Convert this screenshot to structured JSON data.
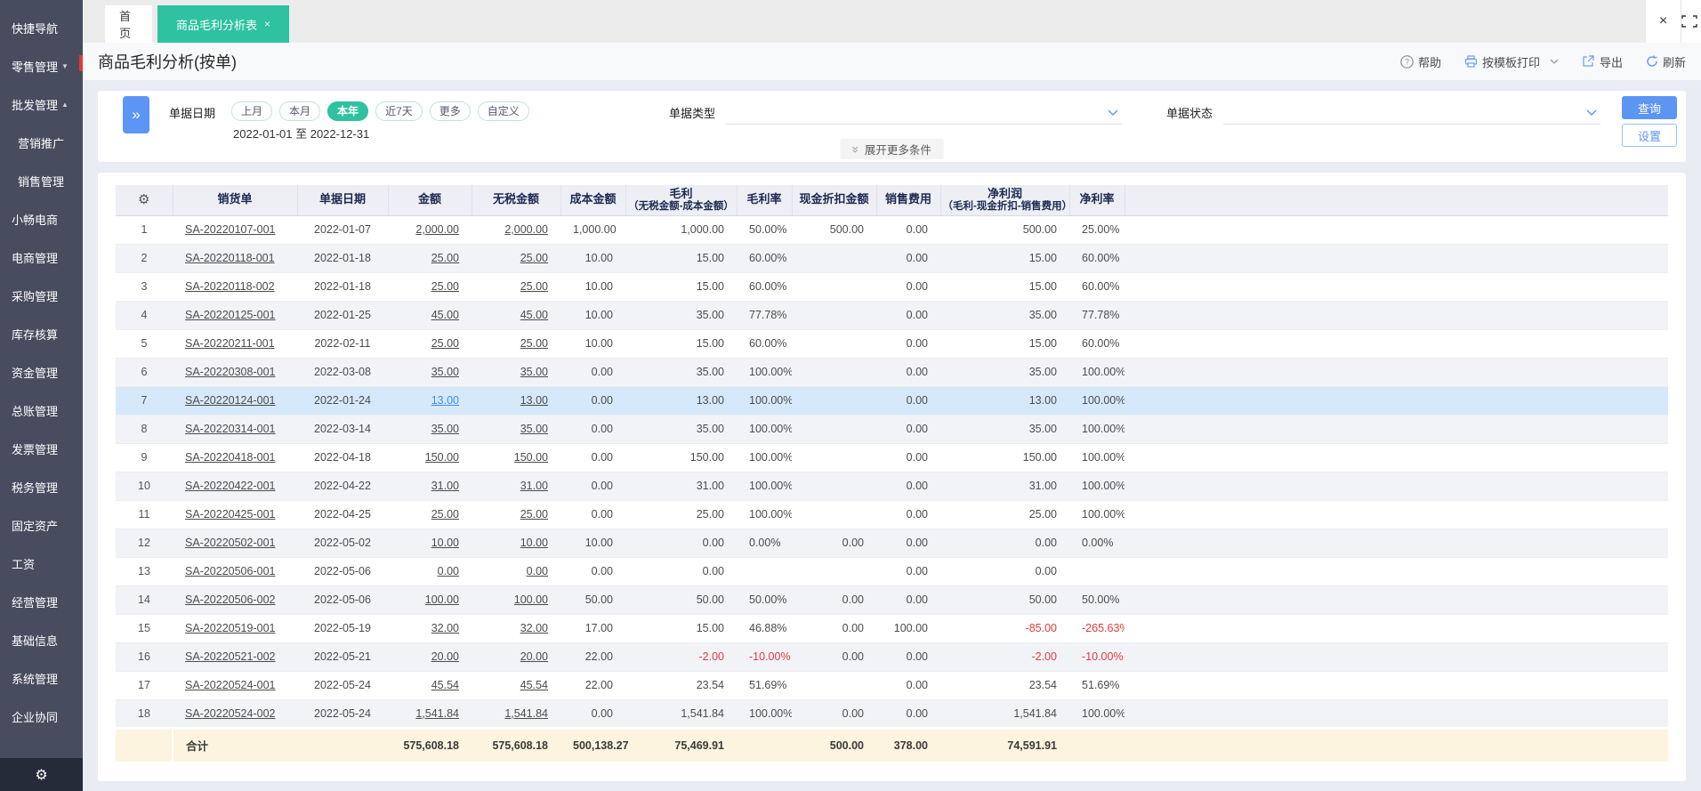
{
  "window": {
    "close_icon": "×"
  },
  "sidebar": {
    "items": [
      {
        "label": "快捷导航"
      },
      {
        "label": "零售管理",
        "arrow": "down"
      },
      {
        "label": "批发管理",
        "arrow": "up"
      },
      {
        "label": "营销推广",
        "sub": true
      },
      {
        "label": "销售管理",
        "sub": true
      },
      {
        "label": "小畅电商"
      },
      {
        "label": "电商管理"
      },
      {
        "label": "采购管理"
      },
      {
        "label": "库存核算"
      },
      {
        "label": "资金管理"
      },
      {
        "label": "总账管理"
      },
      {
        "label": "发票管理"
      },
      {
        "label": "税务管理"
      },
      {
        "label": "固定资产"
      },
      {
        "label": "工资"
      },
      {
        "label": "经营管理"
      },
      {
        "label": "基础信息"
      },
      {
        "label": "系统管理"
      },
      {
        "label": "企业协同"
      }
    ]
  },
  "tabs": [
    {
      "label": "首页",
      "active": false
    },
    {
      "label": "商品毛利分析表",
      "active": true,
      "close": "×"
    }
  ],
  "page": {
    "title": "商品毛利分析(按单)"
  },
  "toolbar": {
    "help": "帮助",
    "print": "按模板打印",
    "export": "导出",
    "refresh": "刷新"
  },
  "filters": {
    "date_label": "单据日期",
    "date_pills": [
      "上月",
      "本月",
      "本年",
      "近7天",
      "更多",
      "自定义"
    ],
    "active_pill": "本年",
    "date_range": "2022-01-01 至 2022-12-31",
    "type_label": "单据类型",
    "status_label": "单据状态",
    "query_button": "查询",
    "settings_button": "设置",
    "expand_more": "展开更多条件"
  },
  "table": {
    "headers": [
      {
        "t": "销货单"
      },
      {
        "t": "单据日期"
      },
      {
        "t": "金额"
      },
      {
        "t": "无税金额"
      },
      {
        "t": "成本金额"
      },
      {
        "t": "毛利",
        "s": "（无税金额-成本金额）"
      },
      {
        "t": "毛利率"
      },
      {
        "t": "现金折扣金额"
      },
      {
        "t": "销售费用"
      },
      {
        "t": "净利润",
        "s": "（毛利-现金折扣-销售费用）"
      },
      {
        "t": "净利率"
      }
    ],
    "rows": [
      {
        "n": "1",
        "order": "SA-20220107-001",
        "date": "2022-01-07",
        "amount": "2,000.00",
        "tax": "2,000.00",
        "cost": "1,000.00",
        "profit": "1,000.00",
        "margin": "50.00%",
        "disc": "500.00",
        "exp": "0.00",
        "net": "500.00",
        "nrate": "25.00%"
      },
      {
        "n": "2",
        "order": "SA-20220118-001",
        "date": "2022-01-18",
        "amount": "25.00",
        "tax": "25.00",
        "cost": "10.00",
        "profit": "15.00",
        "margin": "60.00%",
        "disc": "",
        "exp": "0.00",
        "net": "15.00",
        "nrate": "60.00%"
      },
      {
        "n": "3",
        "order": "SA-20220118-002",
        "date": "2022-01-18",
        "amount": "25.00",
        "tax": "25.00",
        "cost": "10.00",
        "profit": "15.00",
        "margin": "60.00%",
        "disc": "",
        "exp": "0.00",
        "net": "15.00",
        "nrate": "60.00%"
      },
      {
        "n": "4",
        "order": "SA-20220125-001",
        "date": "2022-01-25",
        "amount": "45.00",
        "tax": "45.00",
        "cost": "10.00",
        "profit": "35.00",
        "margin": "77.78%",
        "disc": "",
        "exp": "0.00",
        "net": "35.00",
        "nrate": "77.78%"
      },
      {
        "n": "5",
        "order": "SA-20220211-001",
        "date": "2022-02-11",
        "amount": "25.00",
        "tax": "25.00",
        "cost": "10.00",
        "profit": "15.00",
        "margin": "60.00%",
        "disc": "",
        "exp": "0.00",
        "net": "15.00",
        "nrate": "60.00%"
      },
      {
        "n": "6",
        "order": "SA-20220308-001",
        "date": "2022-03-08",
        "amount": "35.00",
        "tax": "35.00",
        "cost": "0.00",
        "profit": "35.00",
        "margin": "100.00%",
        "disc": "",
        "exp": "0.00",
        "net": "35.00",
        "nrate": "100.00%"
      },
      {
        "n": "7",
        "order": "SA-20220124-001",
        "date": "2022-01-24",
        "amount": "13.00",
        "tax": "13.00",
        "cost": "0.00",
        "profit": "13.00",
        "margin": "100.00%",
        "disc": "",
        "exp": "0.00",
        "net": "13.00",
        "nrate": "100.00%",
        "sel": true
      },
      {
        "n": "8",
        "order": "SA-20220314-001",
        "date": "2022-03-14",
        "amount": "35.00",
        "tax": "35.00",
        "cost": "0.00",
        "profit": "35.00",
        "margin": "100.00%",
        "disc": "",
        "exp": "0.00",
        "net": "35.00",
        "nrate": "100.00%"
      },
      {
        "n": "9",
        "order": "SA-20220418-001",
        "date": "2022-04-18",
        "amount": "150.00",
        "tax": "150.00",
        "cost": "0.00",
        "profit": "150.00",
        "margin": "100.00%",
        "disc": "",
        "exp": "0.00",
        "net": "150.00",
        "nrate": "100.00%"
      },
      {
        "n": "10",
        "order": "SA-20220422-001",
        "date": "2022-04-22",
        "amount": "31.00",
        "tax": "31.00",
        "cost": "0.00",
        "profit": "31.00",
        "margin": "100.00%",
        "disc": "",
        "exp": "0.00",
        "net": "31.00",
        "nrate": "100.00%"
      },
      {
        "n": "11",
        "order": "SA-20220425-001",
        "date": "2022-04-25",
        "amount": "25.00",
        "tax": "25.00",
        "cost": "0.00",
        "profit": "25.00",
        "margin": "100.00%",
        "disc": "",
        "exp": "0.00",
        "net": "25.00",
        "nrate": "100.00%"
      },
      {
        "n": "12",
        "order": "SA-20220502-001",
        "date": "2022-05-02",
        "amount": "10.00",
        "tax": "10.00",
        "cost": "10.00",
        "profit": "0.00",
        "margin": "0.00%",
        "disc": "0.00",
        "exp": "0.00",
        "net": "0.00",
        "nrate": "0.00%"
      },
      {
        "n": "13",
        "order": "SA-20220506-001",
        "date": "2022-05-06",
        "amount": "0.00",
        "tax": "0.00",
        "cost": "0.00",
        "profit": "0.00",
        "margin": "",
        "disc": "",
        "exp": "0.00",
        "net": "0.00",
        "nrate": ""
      },
      {
        "n": "14",
        "order": "SA-20220506-002",
        "date": "2022-05-06",
        "amount": "100.00",
        "tax": "100.00",
        "cost": "50.00",
        "profit": "50.00",
        "margin": "50.00%",
        "disc": "0.00",
        "exp": "0.00",
        "net": "50.00",
        "nrate": "50.00%"
      },
      {
        "n": "15",
        "order": "SA-20220519-001",
        "date": "2022-05-19",
        "amount": "32.00",
        "tax": "32.00",
        "cost": "17.00",
        "profit": "15.00",
        "margin": "46.88%",
        "disc": "0.00",
        "exp": "100.00",
        "net": "-85.00",
        "nrate": "-265.63%"
      },
      {
        "n": "16",
        "order": "SA-20220521-002",
        "date": "2022-05-21",
        "amount": "20.00",
        "tax": "20.00",
        "cost": "22.00",
        "profit": "-2.00",
        "margin": "-10.00%",
        "disc": "0.00",
        "exp": "0.00",
        "net": "-2.00",
        "nrate": "-10.00%"
      },
      {
        "n": "17",
        "order": "SA-20220524-001",
        "date": "2022-05-24",
        "amount": "45.54",
        "tax": "45.54",
        "cost": "22.00",
        "profit": "23.54",
        "margin": "51.69%",
        "disc": "",
        "exp": "0.00",
        "net": "23.54",
        "nrate": "51.69%"
      },
      {
        "n": "18",
        "order": "SA-20220524-002",
        "date": "2022-05-24",
        "amount": "1,541.84",
        "tax": "1,541.84",
        "cost": "0.00",
        "profit": "1,541.84",
        "margin": "100.00%",
        "disc": "0.00",
        "exp": "0.00",
        "net": "1,541.84",
        "nrate": "100.00%"
      }
    ],
    "total": {
      "label": "合计",
      "amount": "575,608.18",
      "tax": "575,608.18",
      "cost": "500,138.27",
      "profit": "75,469.91",
      "margin": "",
      "disc": "500.00",
      "exp": "378.00",
      "net": "74,591.91",
      "nrate": ""
    }
  },
  "colors": {
    "accent_green": "#2ec2a0",
    "accent_blue": "#5d95f5",
    "selected_row": "#d5e9fb",
    "negative": "#e23b3b",
    "total_row_bg": "#fcf4de",
    "sidebar_bg": "#474c5f"
  }
}
